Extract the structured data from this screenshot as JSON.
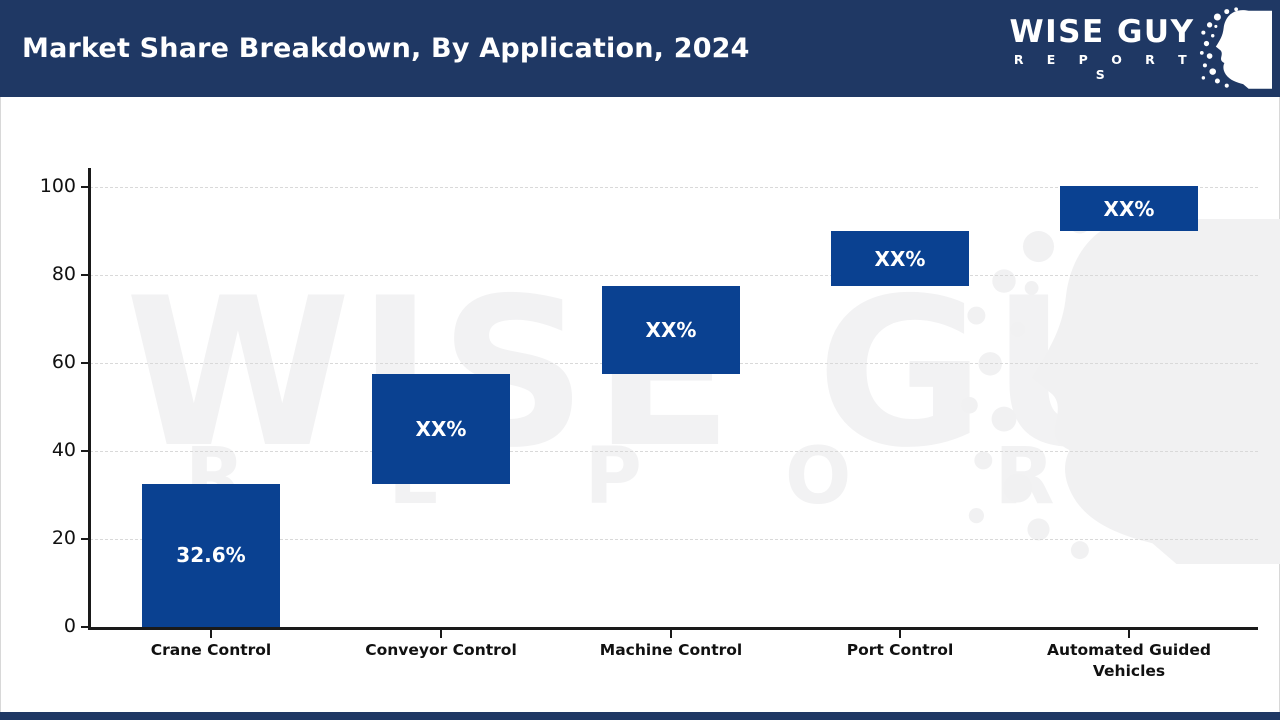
{
  "header": {
    "title": "Market Share Breakdown, By Application, 2024",
    "bg_color": "#1f3864",
    "logo": {
      "line1": "WISE GUY",
      "line2": "R E P O R T S"
    }
  },
  "watermark": {
    "line1": "WISE GUY",
    "line2": "R E P O R T S"
  },
  "footer": {
    "bg_color": "#1f3864"
  },
  "chart_data": {
    "type": "bar",
    "subtype": "waterfall",
    "title": "Market Share Breakdown, By Application, 2024",
    "xlabel": "",
    "ylabel": "",
    "categories": [
      "Crane Control",
      "Conveyor Control",
      "Machine Control",
      "Port Control",
      "Automated Guided Vehicles"
    ],
    "segments": [
      {
        "category": "Crane Control",
        "start": 0,
        "end": 32.6,
        "value_label": "32.6%"
      },
      {
        "category": "Conveyor Control",
        "start": 32.6,
        "end": 57.5,
        "value_label": "XX%"
      },
      {
        "category": "Machine Control",
        "start": 57.5,
        "end": 77.5,
        "value_label": "XX%"
      },
      {
        "category": "Port Control",
        "start": 77.5,
        "end": 90.0,
        "value_label": "XX%"
      },
      {
        "category": "Automated Guided Vehicles",
        "start": 90.0,
        "end": 100.2,
        "value_label": "XX%"
      }
    ],
    "yticks": [
      0,
      20,
      40,
      60,
      80,
      100
    ],
    "ylim": [
      0,
      105
    ],
    "grid": true,
    "legend": false,
    "bar_color": "#0a4191",
    "value_label_color": "#ffffff",
    "grid_color": "#d9d9d9",
    "axis_color": "#1a1a1a",
    "tick_label_color": "#111111"
  }
}
